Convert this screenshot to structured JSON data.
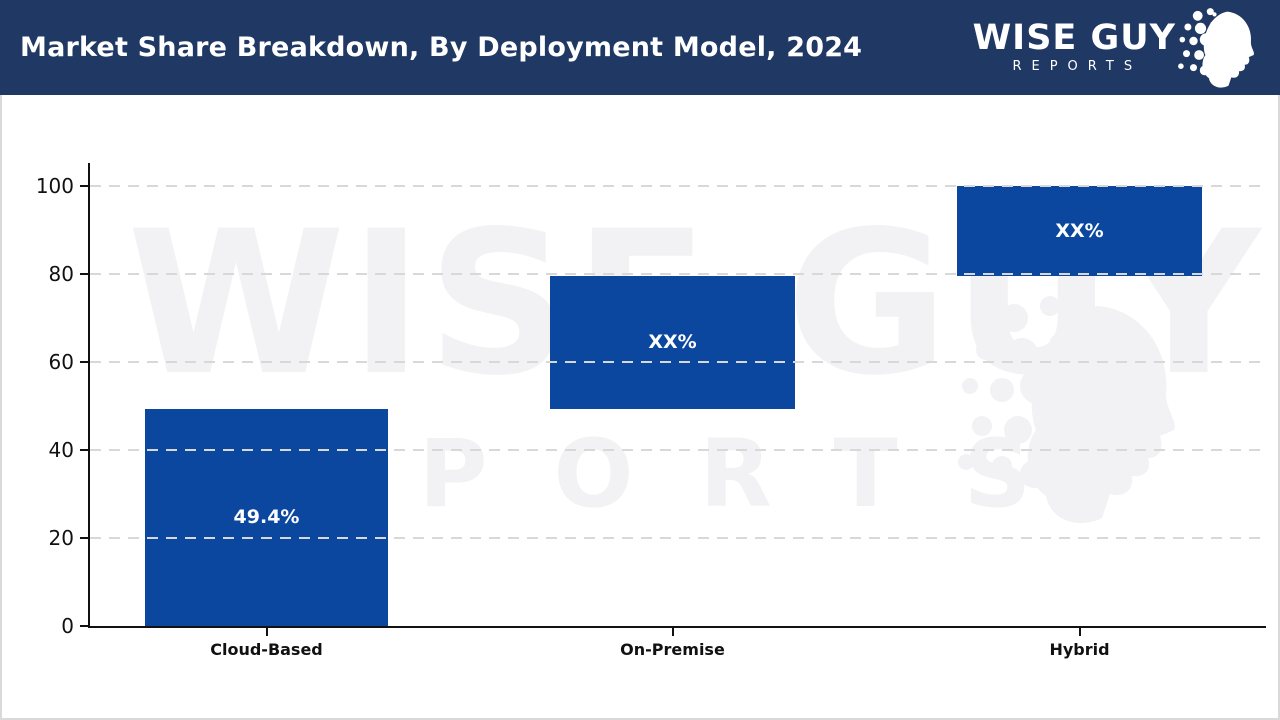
{
  "header": {
    "title": "Market Share Breakdown, By Deployment Model, 2024",
    "logo": {
      "line1": "WISE GUY",
      "line2": "REPORTS"
    }
  },
  "watermark": {
    "line1": "WISE GUY",
    "line2": "REPORTS"
  },
  "colors": {
    "header_bg": "#1f3864",
    "bar": "#0b479f",
    "bar_label": "#ffffff",
    "gridline": "#d8d8d8",
    "axis": "#111111",
    "watermark": "#f2f2f4",
    "frame_border": "#d9d9d9"
  },
  "chart_data": {
    "type": "bar",
    "subtype": "stacked-waterfall",
    "title": "Market Share Breakdown, By Deployment Model, 2024",
    "categories": [
      "Cloud-Based",
      "On-Premise",
      "Hybrid"
    ],
    "bars": [
      {
        "category": "Cloud-Based",
        "start": 0,
        "end": 49.4,
        "value_label": "49.4%"
      },
      {
        "category": "On-Premise",
        "start": 49.4,
        "end": 79.6,
        "value_label": "XX%"
      },
      {
        "category": "Hybrid",
        "start": 79.6,
        "end": 100,
        "value_label": "XX%"
      }
    ],
    "ylim": [
      0,
      100
    ],
    "yticks": [
      0,
      20,
      40,
      60,
      80,
      100
    ],
    "xlabel": "",
    "ylabel": "",
    "grid": "horizontal-dashed",
    "legend": "none"
  }
}
